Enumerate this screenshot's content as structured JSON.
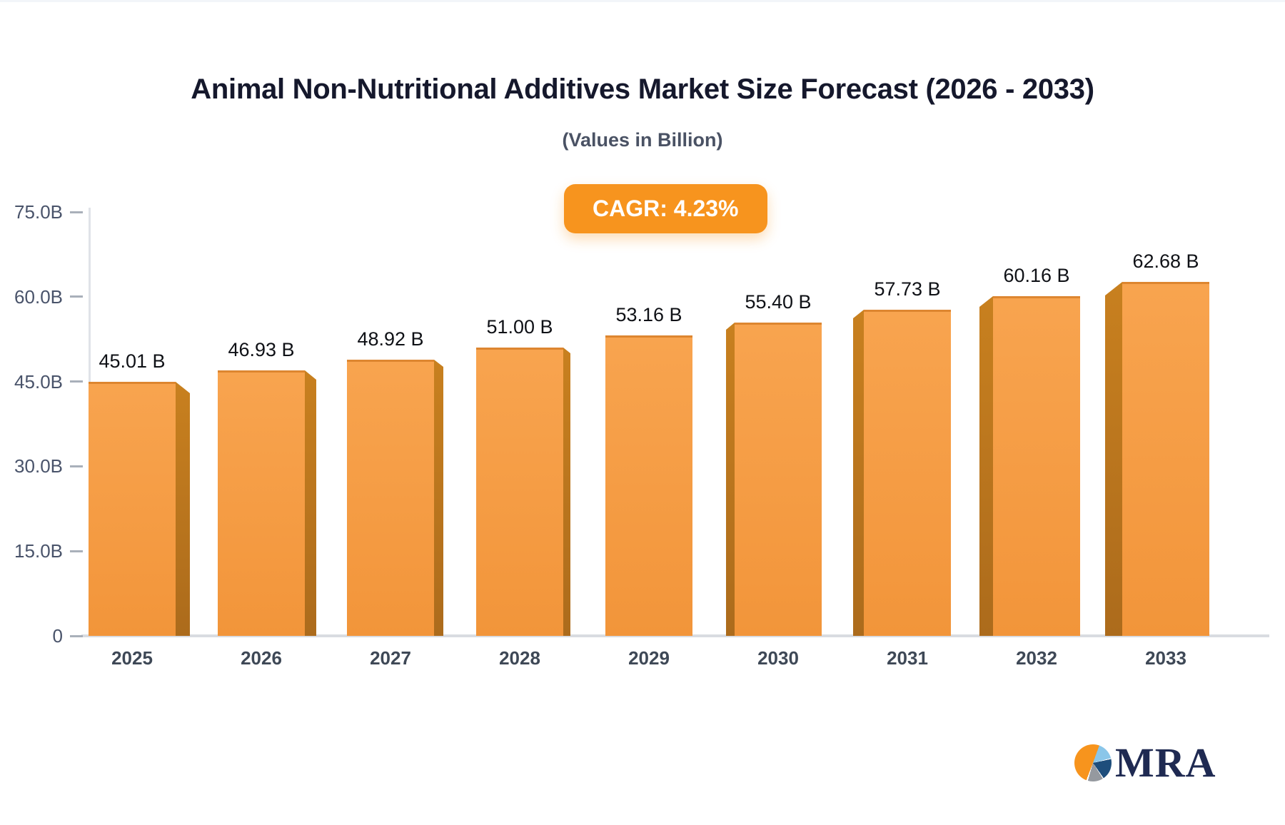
{
  "chart_data": {
    "type": "bar",
    "title": "Animal Non-Nutritional Additives Market Size Forecast (2026 - 2033)",
    "subtitle": "(Values in Billion)",
    "annotation": "CAGR: 4.23%",
    "categories": [
      "2025",
      "2026",
      "2027",
      "2028",
      "2029",
      "2030",
      "2031",
      "2032",
      "2033"
    ],
    "values": [
      45.01,
      46.93,
      48.92,
      51.0,
      53.16,
      55.4,
      57.73,
      60.16,
      62.68
    ],
    "value_labels": [
      "45.01 B",
      "46.93 B",
      "48.92 B",
      "51.00 B",
      "53.16 B",
      "55.40 B",
      "57.73 B",
      "60.16 B",
      "62.68 B"
    ],
    "xlabel": "",
    "ylabel": "",
    "ylim": [
      0,
      75
    ],
    "y_ticks": {
      "values": [
        0,
        15,
        30,
        45,
        60,
        75
      ],
      "labels": [
        "0",
        "15.0B",
        "30.0B",
        "45.0B",
        "60.0B",
        "75.0B"
      ]
    },
    "grid": false,
    "legend": false,
    "bar_3d": {
      "depths": [
        20,
        16,
        13,
        10,
        0,
        12,
        15,
        19,
        24
      ],
      "sides": [
        "right",
        "right",
        "right",
        "right",
        "none",
        "left",
        "left",
        "left",
        "left"
      ]
    },
    "colors": {
      "bar_front_top": "#F8A44F",
      "bar_front_bottom": "#F2953A",
      "bar_top_edge": "#DD8630",
      "bar_side_top": "#C8801F",
      "bar_side_bottom": "#AC6B1C",
      "badge_bg": "#F7941E",
      "badge_text": "#FFFFFF",
      "axis_line": "#E0E3E8",
      "baseline": "#D9DCE1",
      "tick_text": "#49536A",
      "year_text": "#3E4856",
      "value_text": "#0F1116",
      "title_text": "#15182C",
      "subtitle_text": "#4A5264"
    }
  },
  "logo": {
    "text": "MRA",
    "text_color": "#1F2A52",
    "pie_colors": [
      "#F7941D",
      "#8AC6E9",
      "#1E4E7C",
      "#95999F"
    ]
  }
}
